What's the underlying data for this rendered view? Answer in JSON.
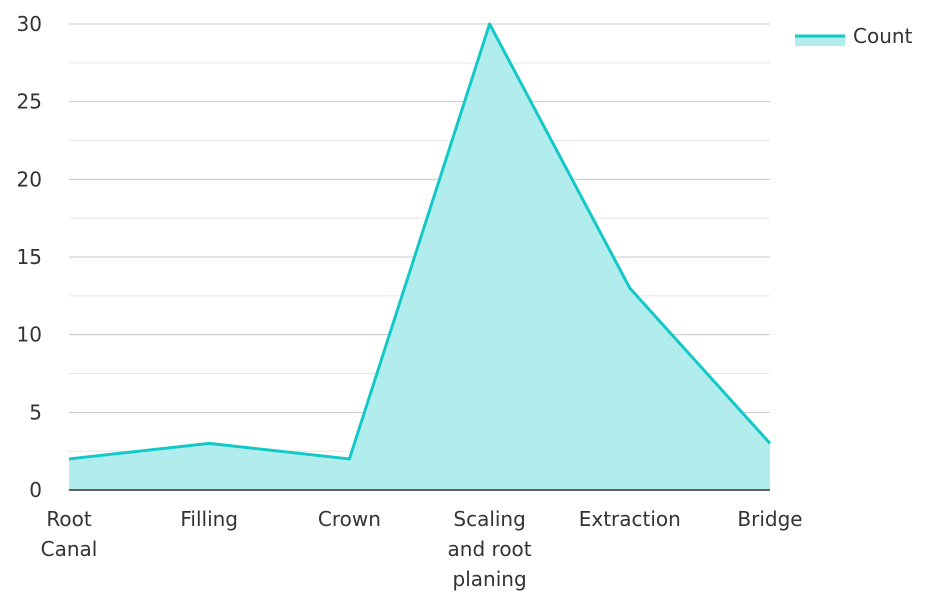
{
  "chart_data": {
    "type": "area",
    "categories": [
      "Root Canal",
      "Filling",
      "Crown",
      "Scaling and root planing",
      "Extraction",
      "Bridge"
    ],
    "category_label_lines": [
      [
        "Root",
        "Canal"
      ],
      [
        "Filling"
      ],
      [
        "Crown"
      ],
      [
        "Scaling",
        "and root",
        "planing"
      ],
      [
        "Extraction"
      ],
      [
        "Bridge"
      ]
    ],
    "series": [
      {
        "name": "Count",
        "values": [
          2,
          3,
          2,
          30,
          13,
          3
        ]
      }
    ],
    "ylim": [
      0,
      30
    ],
    "yticks": [
      "0",
      "5",
      "10",
      "15",
      "20",
      "25",
      "30"
    ],
    "grid": true,
    "legend_position": "top-right",
    "line_color": "#14C8C8",
    "fill_color": "#B2EDED"
  }
}
